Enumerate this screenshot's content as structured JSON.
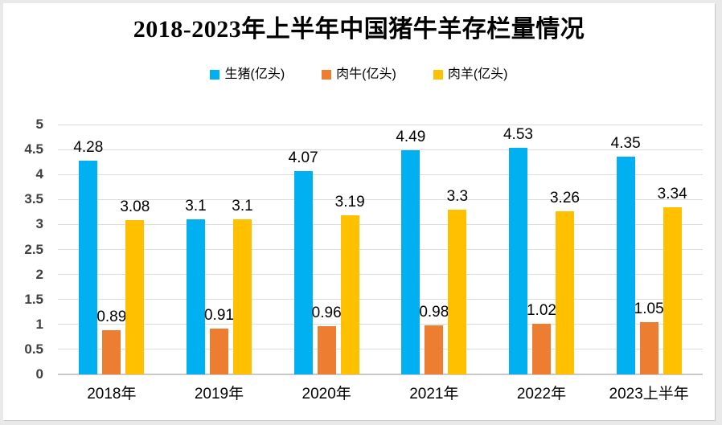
{
  "chart_data": {
    "type": "bar",
    "title": "2018-2023年上半年中国猪牛羊存栏量情况",
    "categories": [
      "2018年",
      "2019年",
      "2020年",
      "2021年",
      "2022年",
      "2023上半年"
    ],
    "series": [
      {
        "name": "生猪(亿头)",
        "color": "#00B0F0",
        "values": [
          4.28,
          3.1,
          4.07,
          4.49,
          4.53,
          4.35
        ]
      },
      {
        "name": "肉牛(亿头)",
        "color": "#ED7D31",
        "values": [
          0.89,
          0.91,
          0.96,
          0.98,
          1.02,
          1.05
        ]
      },
      {
        "name": "肉羊(亿头)",
        "color": "#FFC000",
        "values": [
          3.08,
          3.1,
          3.19,
          3.3,
          3.26,
          3.34
        ]
      }
    ],
    "ylim": [
      0,
      5
    ],
    "yticks": [
      0,
      0.5,
      1,
      1.5,
      2,
      2.5,
      3,
      3.5,
      4,
      4.5,
      5
    ],
    "ytick_labels": [
      "0",
      "0.5",
      "1",
      "1.5",
      "2",
      "2.5",
      "3",
      "3.5",
      "4",
      "4.5",
      "5"
    ],
    "grid": true,
    "legend_position": "top",
    "data_labels": true,
    "colors": {
      "gridline": "#dcdcdc",
      "axis_line": "#c9c9c9",
      "ytick_text": "#404040",
      "label_text": "#000000",
      "background": "#ffffff",
      "frame": "#e9e9e9"
    }
  }
}
